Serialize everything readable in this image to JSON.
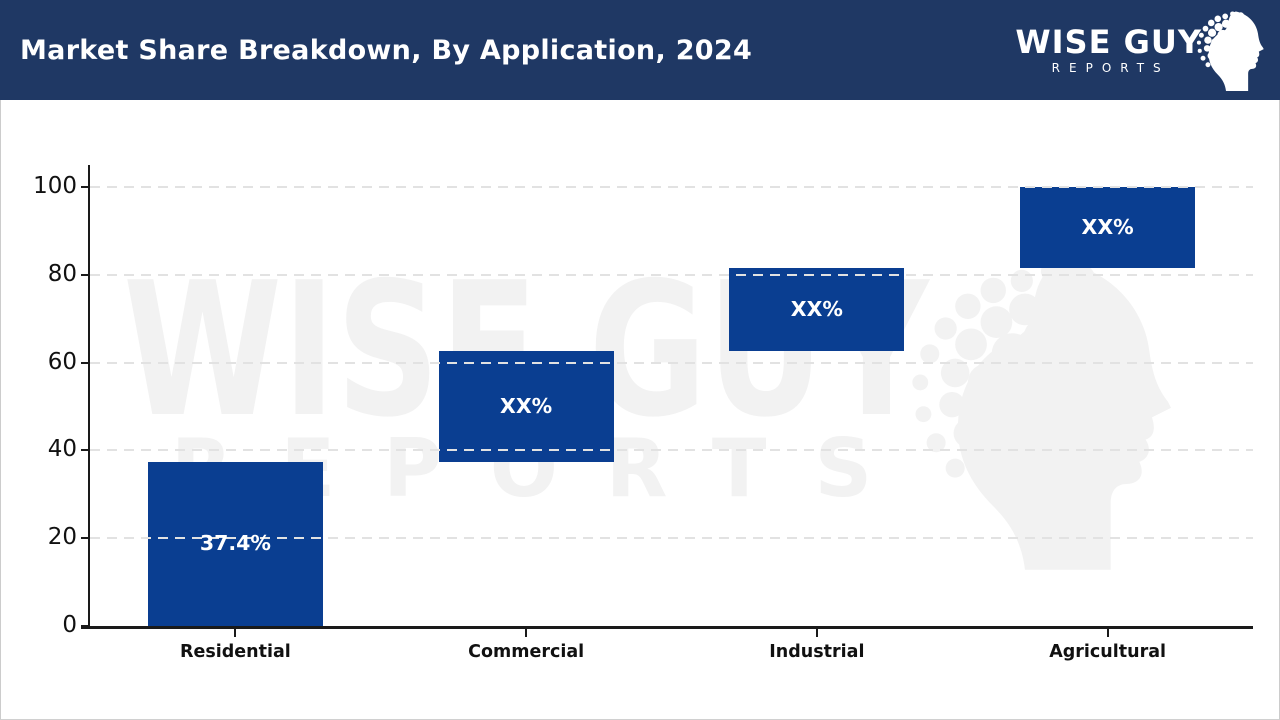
{
  "header": {
    "title": "Market Share Breakdown, By Application, 2024",
    "logo": {
      "line1": "WISE GUY",
      "line2": "REPORTS"
    }
  },
  "watermark": {
    "line1": "WISE GUY",
    "line2": "REPORTS"
  },
  "colors": {
    "header_bg": "#1F3864",
    "bar": "#0A3E91",
    "grid": "#E2E2E2",
    "axis": "#1A1A1A",
    "tick_text": "#111111",
    "bar_label_text": "#FFFFFF",
    "watermark": "#F2F2F2",
    "border": "#CCCCCC"
  },
  "chart_data": {
    "type": "bar",
    "subtype": "waterfall-segments",
    "title": "Market Share Breakdown, By Application, 2024",
    "categories": [
      "Residential",
      "Commercial",
      "Industrial",
      "Agricultural"
    ],
    "segments": [
      {
        "category": "Residential",
        "start": 0,
        "end": 37.4,
        "label": "37.4%"
      },
      {
        "category": "Commercial",
        "start": 37.4,
        "end": 62.6,
        "label": "XX%"
      },
      {
        "category": "Industrial",
        "start": 62.6,
        "end": 81.5,
        "label": "XX%"
      },
      {
        "category": "Agricultural",
        "start": 81.5,
        "end": 100,
        "label": "XX%"
      }
    ],
    "xlabel": "",
    "ylabel": "",
    "yticks": [
      0,
      20,
      40,
      60,
      80,
      100
    ],
    "ylim": [
      0,
      105
    ],
    "grid": "horizontal-dashed",
    "legend": "none"
  }
}
